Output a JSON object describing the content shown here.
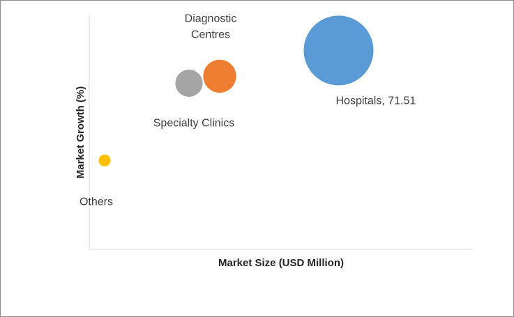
{
  "chart_data": {
    "type": "bubble",
    "title": "",
    "xlabel": "Market Size (USD Million)",
    "ylabel": "Market Growth (%)",
    "grid": false,
    "legend": "none",
    "series": [
      {
        "name": "Hospitals",
        "label_lines": [
          "Hospitals, 71.51"
        ],
        "size": 71.51,
        "x": 65,
        "y": 85,
        "color": "#5b9bd5"
      },
      {
        "name": "Diagnostic Centres",
        "label_lines": [
          "Diagnostic",
          "Centres"
        ],
        "size": 16,
        "x": 34,
        "y": 74,
        "color": "#ed7d31"
      },
      {
        "name": "Specialty Clinics",
        "label_lines": [
          "Specialty Clinics"
        ],
        "size": 11,
        "x": 26,
        "y": 71,
        "color": "#a5a5a5"
      },
      {
        "name": "Others",
        "label_lines": [
          "Others"
        ],
        "size": 1.5,
        "x": 4,
        "y": 38,
        "color": "#ffc000"
      }
    ]
  }
}
